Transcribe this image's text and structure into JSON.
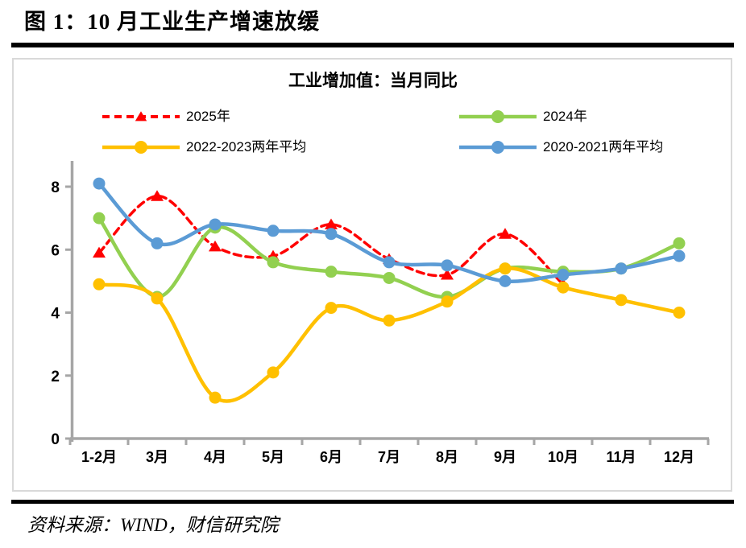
{
  "page": {
    "figure_title": "图 1：10 月工业生产增速放缓",
    "source": "资料来源：WIND，财信研究院"
  },
  "chart_data": {
    "type": "line",
    "title": "工业增加值：当月同比",
    "xlabel": "",
    "ylabel": "",
    "categories": [
      "1-2月",
      "3月",
      "4月",
      "5月",
      "6月",
      "7月",
      "8月",
      "9月",
      "10月",
      "11月",
      "12月"
    ],
    "y_ticks": [
      0,
      2,
      4,
      6,
      8
    ],
    "ylim": [
      0,
      8.8
    ],
    "grid": false,
    "legend_position": "top",
    "series": [
      {
        "name": "2025年",
        "color": "#FF0000",
        "style": "dashed",
        "marker": "triangle",
        "values": [
          5.9,
          7.7,
          6.1,
          5.8,
          6.8,
          5.7,
          5.2,
          6.5,
          4.9,
          null,
          null
        ]
      },
      {
        "name": "2024年",
        "color": "#92D050",
        "style": "solid",
        "marker": "circle",
        "values": [
          7.0,
          4.5,
          6.7,
          5.6,
          5.3,
          5.1,
          4.5,
          5.4,
          5.3,
          5.4,
          6.2
        ]
      },
      {
        "name": "2022-2023两年平均",
        "color": "#FFC000",
        "style": "solid",
        "marker": "circle",
        "values": [
          4.9,
          4.45,
          1.3,
          2.1,
          4.15,
          3.75,
          4.35,
          5.4,
          4.8,
          4.4,
          4.0
        ]
      },
      {
        "name": "2020-2021两年平均",
        "color": "#5B9BD5",
        "style": "solid",
        "marker": "circle",
        "values": [
          8.1,
          6.2,
          6.8,
          6.6,
          6.5,
          5.6,
          5.5,
          5.0,
          5.2,
          5.4,
          5.8
        ]
      }
    ]
  }
}
